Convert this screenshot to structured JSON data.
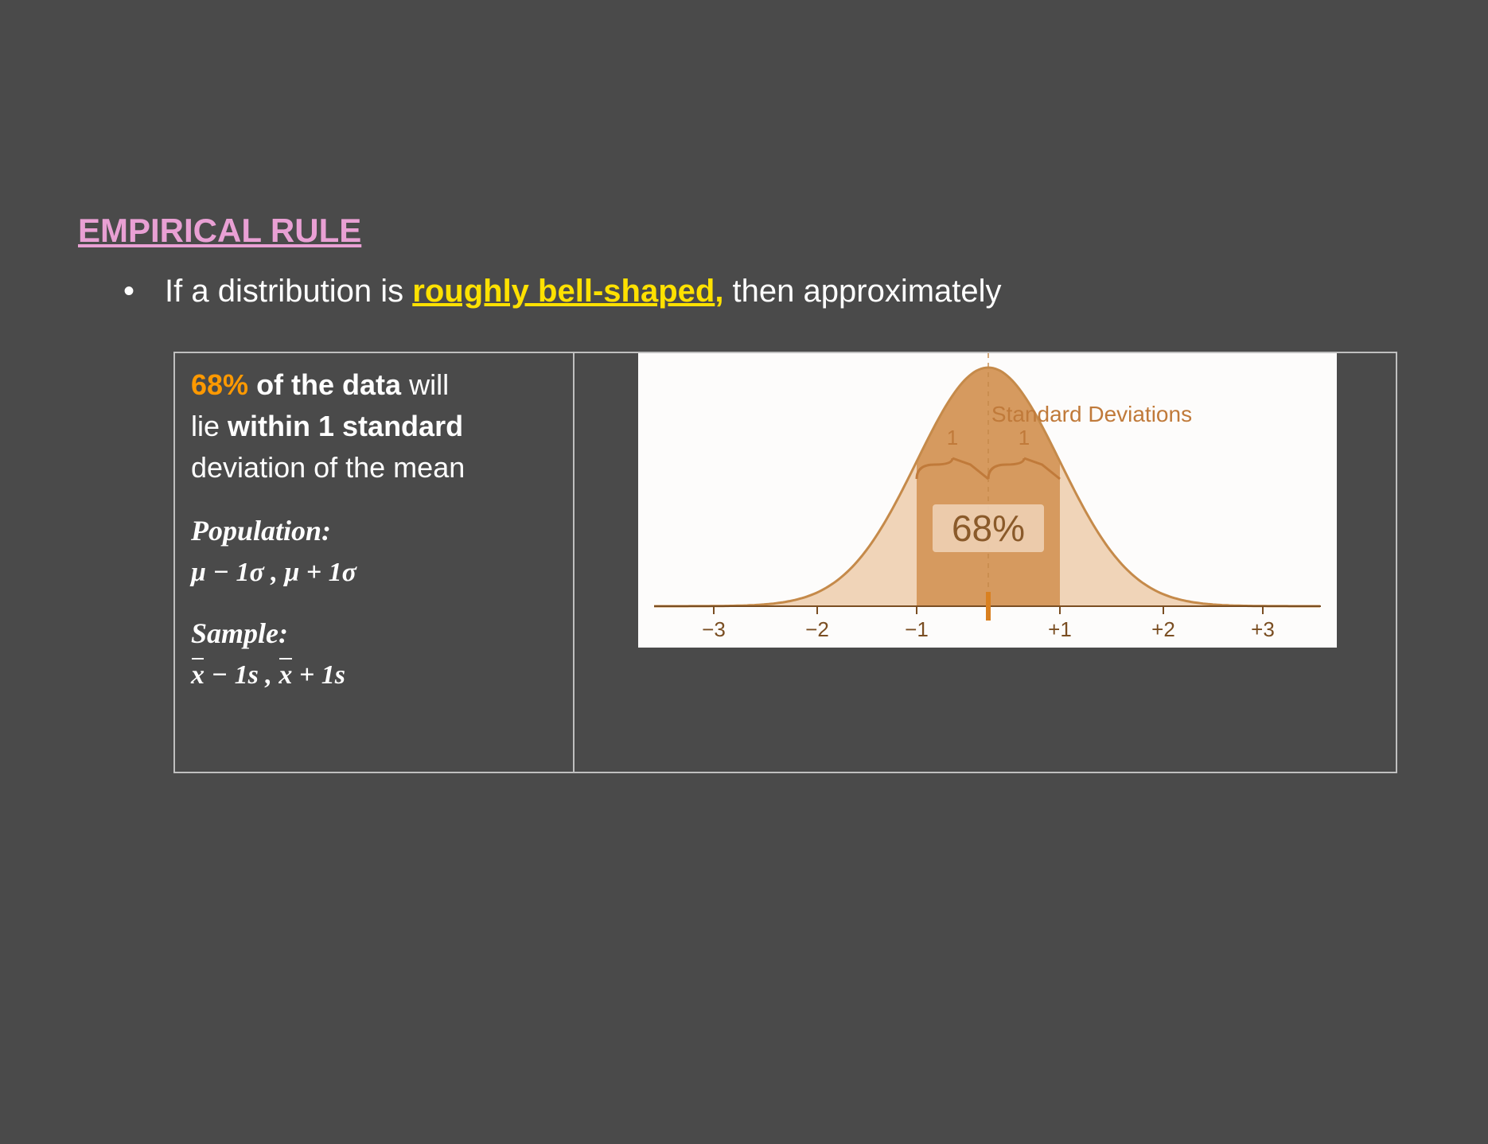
{
  "title": {
    "text": "EMPIRICAL RULE",
    "color": "#e9a0d4"
  },
  "bullet": {
    "pre": "If a distribution is ",
    "highlight": "roughly bell-shaped",
    "comma": ",",
    "post": " then approximately",
    "highlight_color": "#ffe100",
    "text_color": "#ffffff"
  },
  "left_panel": {
    "percent_text": "68%",
    "percent_color": "#ff9900",
    "line1a": " of the data",
    "line1b": " will",
    "line2a": "lie ",
    "line2b": "within 1 standard",
    "line3": "deviation of the mean",
    "pop_label": "Population:",
    "pop_formula": "μ − 1σ , μ + 1σ",
    "sample_label": "Sample:",
    "sample_formula_parts": {
      "x1": "x",
      "mid1": " − 1s , ",
      "x2": "x",
      "mid2": " + 1s"
    }
  },
  "chart": {
    "type": "bell_curve",
    "background_color": "#fdfcfb",
    "curve_stroke": "#c58a4a",
    "curve_fill_light": "#f0d4b8",
    "curve_fill_dark": "#d69a5f",
    "axis_color": "#7a4e22",
    "tick_label_color": "#7a4e22",
    "tick_label_fontsize": 26,
    "annotation_color": "#c07a3a",
    "annotation_fontsize": 28,
    "center_percent": "68%",
    "center_percent_fontsize": 46,
    "center_percent_color": "#8a5a2a",
    "sd_title": "Standard Deviations",
    "sd_marks": [
      "1",
      "1"
    ],
    "x_ticks": [
      "−3",
      "−2",
      "−1",
      "",
      "+1",
      "+2",
      "+3"
    ],
    "x_positions_svg": [
      95,
      225,
      350,
      440,
      530,
      660,
      785
    ],
    "curve_area_width": 878,
    "curve_area_height": 370
  }
}
